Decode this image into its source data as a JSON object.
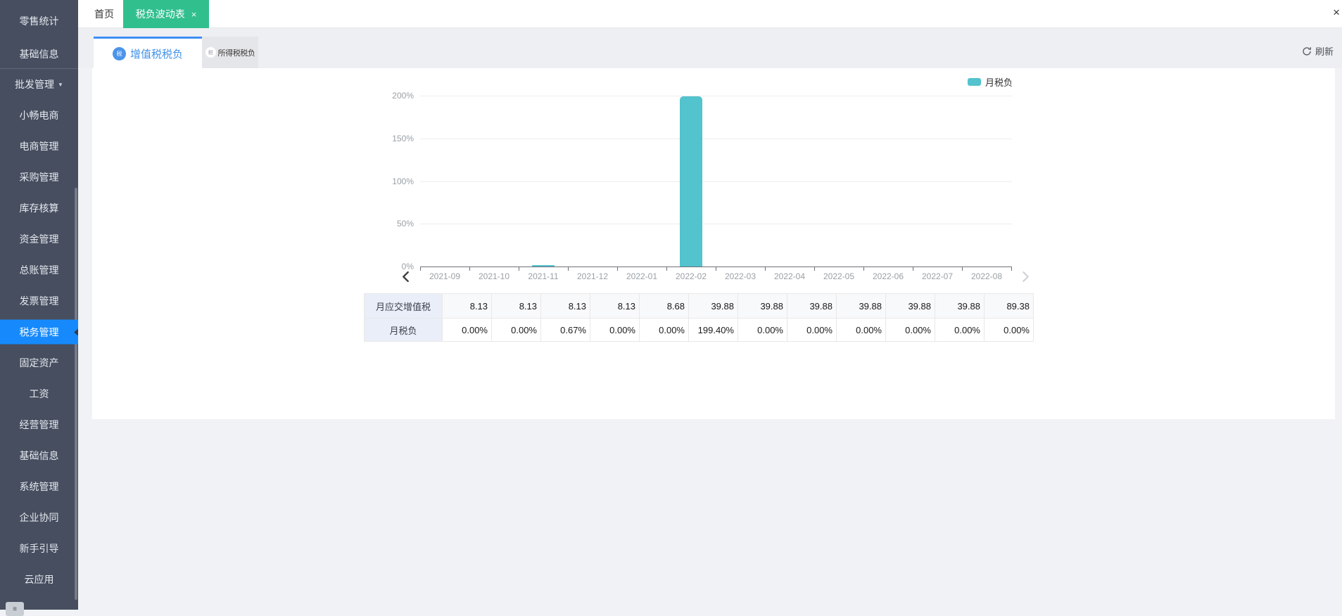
{
  "sidebar": {
    "items": [
      {
        "label": "零售统计"
      },
      {
        "label": "基础信息"
      },
      {
        "divider": true
      },
      {
        "label": "批发管理",
        "caret": true
      },
      {
        "label": "小畅电商"
      },
      {
        "label": "电商管理"
      },
      {
        "label": "采购管理"
      },
      {
        "label": "库存核算"
      },
      {
        "label": "资金管理"
      },
      {
        "label": "总账管理"
      },
      {
        "label": "发票管理"
      },
      {
        "label": "税务管理",
        "active": true
      },
      {
        "label": "固定资产"
      },
      {
        "label": "工资"
      },
      {
        "label": "经营管理"
      },
      {
        "label": "基础信息"
      },
      {
        "label": "系统管理"
      },
      {
        "label": "企业协同"
      },
      {
        "label": "新手引导"
      },
      {
        "label": "云应用"
      }
    ],
    "bottom_button_icon": "≡"
  },
  "topbar": {
    "tabs": [
      {
        "label": "首页",
        "active": false
      },
      {
        "label": "税负波动表",
        "active": true,
        "close_icon": "×"
      }
    ],
    "window_close_icon": "×"
  },
  "content_tabs": [
    {
      "label": "增值税税负",
      "icon_text": "税",
      "active": true
    },
    {
      "label": "所得税税负",
      "icon_text": "税",
      "active": false
    }
  ],
  "toolbar": {
    "refresh_label": "刷新"
  },
  "chart_data": {
    "type": "bar",
    "title": "",
    "categories": [
      "2021-09",
      "2021-10",
      "2021-11",
      "2021-12",
      "2022-01",
      "2022-02",
      "2022-03",
      "2022-04",
      "2022-05",
      "2022-06",
      "2022-07",
      "2022-08"
    ],
    "series": [
      {
        "name": "月税负",
        "color": "#53c3cd",
        "values": [
          0.0,
          0.0,
          0.67,
          0.0,
          0.0,
          199.4,
          0.0,
          0.0,
          0.0,
          0.0,
          0.0,
          0.0
        ]
      }
    ],
    "ylim": [
      0,
      200
    ],
    "yticks": [
      0,
      50,
      100,
      150,
      200
    ],
    "ytick_suffix": "%",
    "grid": true,
    "legend_position": "top-right",
    "pager_prev_enabled": true,
    "pager_next_enabled": false
  },
  "table": {
    "rows": [
      {
        "header": "月应交增值税",
        "values": [
          "8.13",
          "8.13",
          "8.13",
          "8.13",
          "8.68",
          "39.88",
          "39.88",
          "39.88",
          "39.88",
          "39.88",
          "39.88",
          "89.38"
        ]
      },
      {
        "header": "月税负",
        "values": [
          "0.00%",
          "0.00%",
          "0.67%",
          "0.00%",
          "0.00%",
          "199.40%",
          "0.00%",
          "0.00%",
          "0.00%",
          "0.00%",
          "0.00%",
          "0.00%"
        ]
      }
    ]
  },
  "colors": {
    "page_bg": "#f0f2f5",
    "sidebar_bg": "#474e5f",
    "sidebar_active_blue": "#168afd",
    "page_tab_green": "#31bf8e",
    "content_tab_blue": "#3e8ef7",
    "bar_teal": "#53c3cd",
    "table_header_bg": "#e9eef8"
  }
}
